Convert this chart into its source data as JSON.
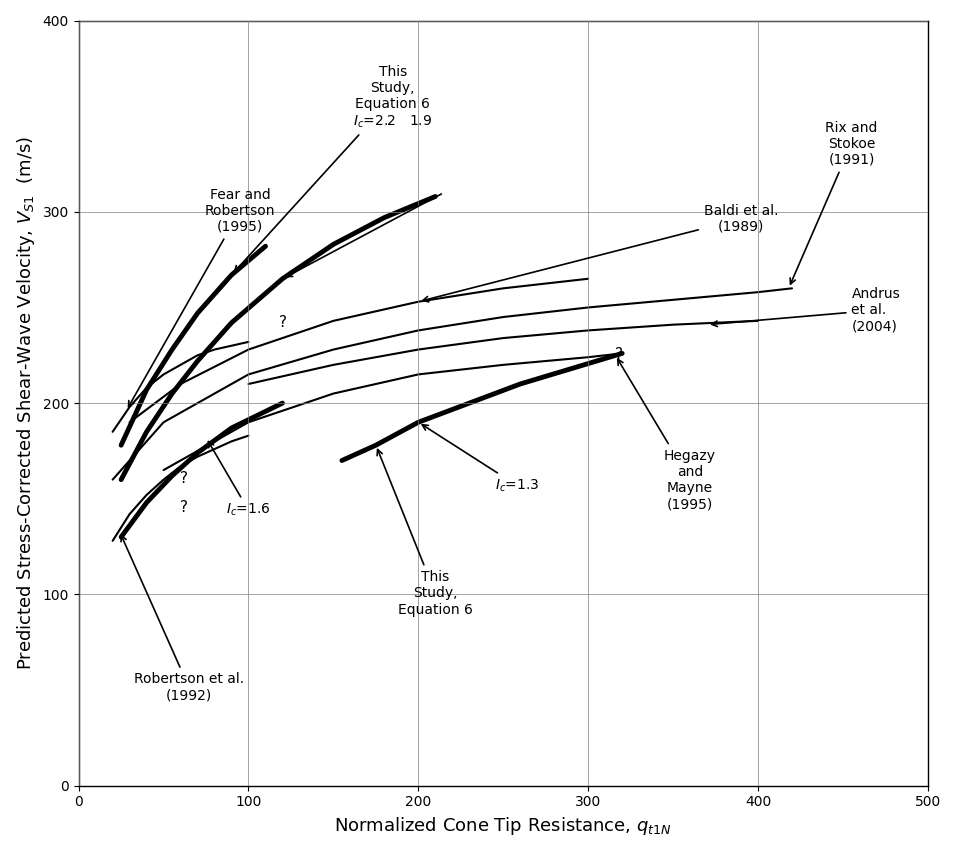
{
  "xlim": [
    0,
    500
  ],
  "ylim": [
    0,
    400
  ],
  "xlabel": "Normalized Cone Tip Resistance, $q_{t1N}$",
  "ylabel": "Predicted Stress-Corrected Shear-Wave Velocity, $V_{S1}$  (m/s)",
  "xticks": [
    0,
    100,
    200,
    300,
    400,
    500
  ],
  "yticks": [
    0,
    100,
    200,
    300,
    400
  ],
  "grid": true,
  "figsize": [
    9.56,
    8.52
  ],
  "dpi": 100,
  "background": "#ffffff",
  "curves": {
    "rix_stokoe": {
      "x": [
        20,
        50,
        100,
        150,
        200,
        250,
        300,
        350,
        400,
        420
      ],
      "y": [
        160,
        190,
        215,
        228,
        238,
        245,
        250,
        254,
        258,
        260
      ],
      "lw": 1.5,
      "label": "Rix and Stokoe (1991)"
    },
    "fear_robertson": {
      "x": [
        20,
        30,
        40,
        50,
        60,
        70,
        80,
        90,
        100
      ],
      "y": [
        185,
        198,
        208,
        215,
        220,
        225,
        228,
        230,
        232
      ],
      "lw": 1.5,
      "label": "Fear and Robertson (1995)"
    },
    "baldi": {
      "x": [
        30,
        60,
        100,
        150,
        200,
        250,
        300
      ],
      "y": [
        190,
        210,
        228,
        243,
        253,
        260,
        265
      ],
      "lw": 1.5,
      "label": "Baldi et al. (1989)"
    },
    "andrus": {
      "x": [
        100,
        150,
        200,
        250,
        300,
        350,
        400
      ],
      "y": [
        210,
        220,
        228,
        234,
        238,
        241,
        243
      ],
      "lw": 1.5,
      "label": "Andrus et al. (2004)"
    },
    "hegazy_mayne": {
      "x": [
        50,
        100,
        150,
        200,
        250,
        300,
        320
      ],
      "y": [
        165,
        190,
        205,
        215,
        220,
        224,
        226
      ],
      "lw": 1.5,
      "label": "Hegazy and Mayne (1995)"
    },
    "robertson": {
      "x": [
        20,
        30,
        40,
        50,
        60,
        70,
        80,
        90,
        100
      ],
      "y": [
        128,
        142,
        152,
        160,
        167,
        172,
        176,
        180,
        183
      ],
      "lw": 1.5,
      "label": "Robertson et al. (1992)"
    },
    "this_study_22": {
      "x": [
        25,
        40,
        55,
        70,
        90,
        110
      ],
      "y": [
        178,
        207,
        228,
        247,
        267,
        282
      ],
      "lw": 3.5,
      "label": "This Study Eq6 Ic=2.2"
    },
    "this_study_19": {
      "x": [
        25,
        40,
        55,
        70,
        90,
        120,
        150,
        180,
        210
      ],
      "y": [
        160,
        185,
        205,
        222,
        242,
        265,
        283,
        297,
        308
      ],
      "lw": 3.5,
      "label": "This Study Eq6 Ic=1.9"
    },
    "this_study_16": {
      "x": [
        25,
        40,
        55,
        70,
        90,
        120
      ],
      "y": [
        130,
        148,
        162,
        174,
        187,
        200
      ],
      "lw": 3.5,
      "label": "This Study Eq6 Ic=1.6"
    },
    "this_study_13": {
      "x": [
        155,
        175,
        200,
        230,
        260,
        290,
        320
      ],
      "y": [
        170,
        178,
        190,
        200,
        210,
        218,
        226
      ],
      "lw": 3.5,
      "label": "This Study Eq6 Ic=1.3"
    }
  }
}
